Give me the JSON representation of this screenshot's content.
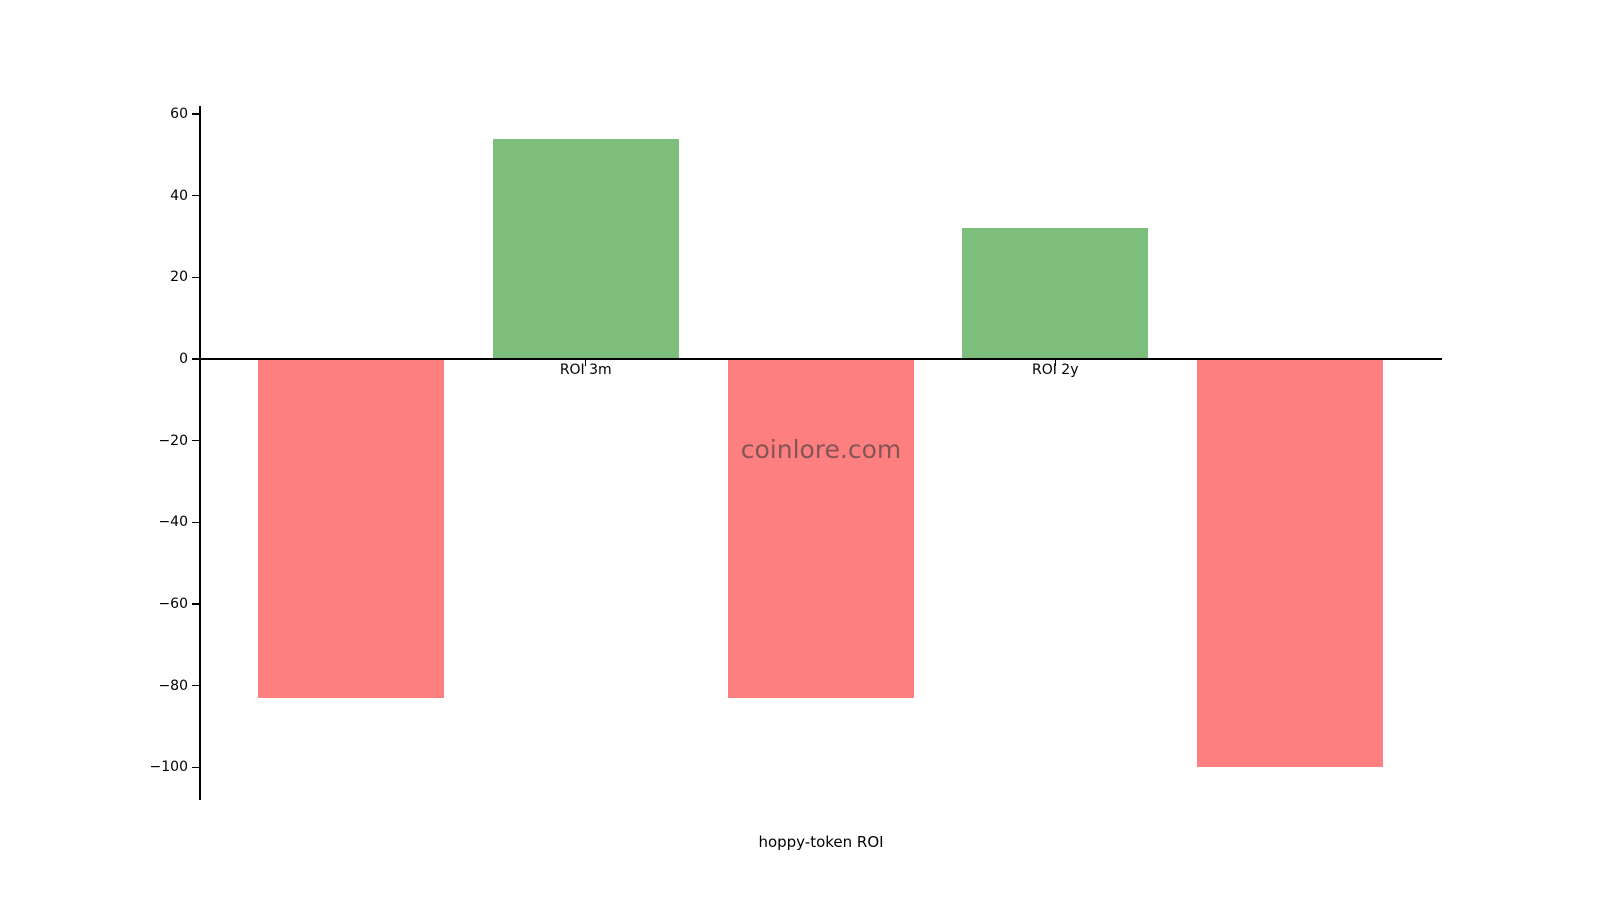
{
  "chart_data": {
    "type": "bar",
    "title": "hoppy-token ROI",
    "categories": [
      "",
      "ROI 3m",
      "",
      "ROI 2y",
      ""
    ],
    "values": [
      -83,
      54,
      -83,
      32,
      -100
    ],
    "positive_color": "#7dbe7d",
    "negative_color": "#fd7f7f",
    "y_ticks": [
      60,
      40,
      20,
      0,
      -20,
      -40,
      -60,
      -80,
      -100
    ],
    "y_tick_labels": [
      "60",
      "40",
      "20",
      "0",
      "−20",
      "−40",
      "−60",
      "−80",
      "−100"
    ],
    "ylim": [
      -108,
      62
    ],
    "xlabel": "",
    "ylabel": "",
    "grid": false,
    "legend": "none",
    "axis_color": "#000000",
    "background_color": "#ffffff"
  },
  "watermark": {
    "text": "coinlore.com"
  }
}
